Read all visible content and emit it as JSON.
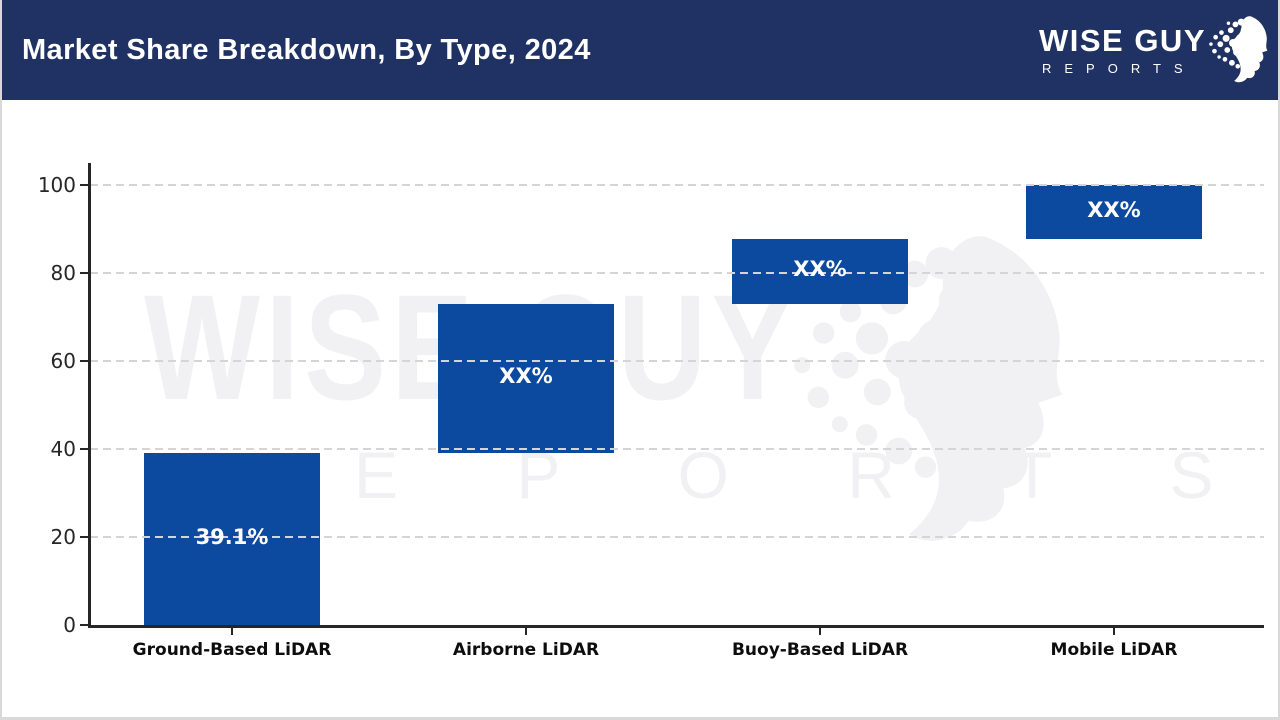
{
  "header": {
    "title": "Market Share Breakdown, By Type, 2024",
    "bg_color": "#203263",
    "logo": {
      "line1": "WISE GUY",
      "line2": "REPORTS"
    }
  },
  "watermark": {
    "line1": "WISE GUY",
    "line2": "R E P O R T S"
  },
  "chart_data": {
    "type": "bar",
    "subtype": "waterfall",
    "title": "Market Share Breakdown, By Type, 2024",
    "categories": [
      "Ground-Based LiDAR",
      "Airborne LiDAR",
      "Buoy-Based LiDAR",
      "Mobile LiDAR"
    ],
    "segments": [
      {
        "category": "Ground-Based LiDAR",
        "start": 0,
        "end": 39.1,
        "label": "39.1%"
      },
      {
        "category": "Airborne LiDAR",
        "start": 39.1,
        "end": 73.0,
        "label": "XX%"
      },
      {
        "category": "Buoy-Based LiDAR",
        "start": 73.0,
        "end": 87.8,
        "label": "XX%"
      },
      {
        "category": "Mobile LiDAR",
        "start": 87.8,
        "end": 100.0,
        "label": "XX%"
      }
    ],
    "y_ticks": [
      0,
      20,
      40,
      60,
      80,
      100
    ],
    "ylim": [
      0,
      105
    ],
    "xlabel": "",
    "ylabel": "",
    "bar_color": "#0b4a9e",
    "grid": "horizontal-dashed",
    "legend": "none"
  }
}
